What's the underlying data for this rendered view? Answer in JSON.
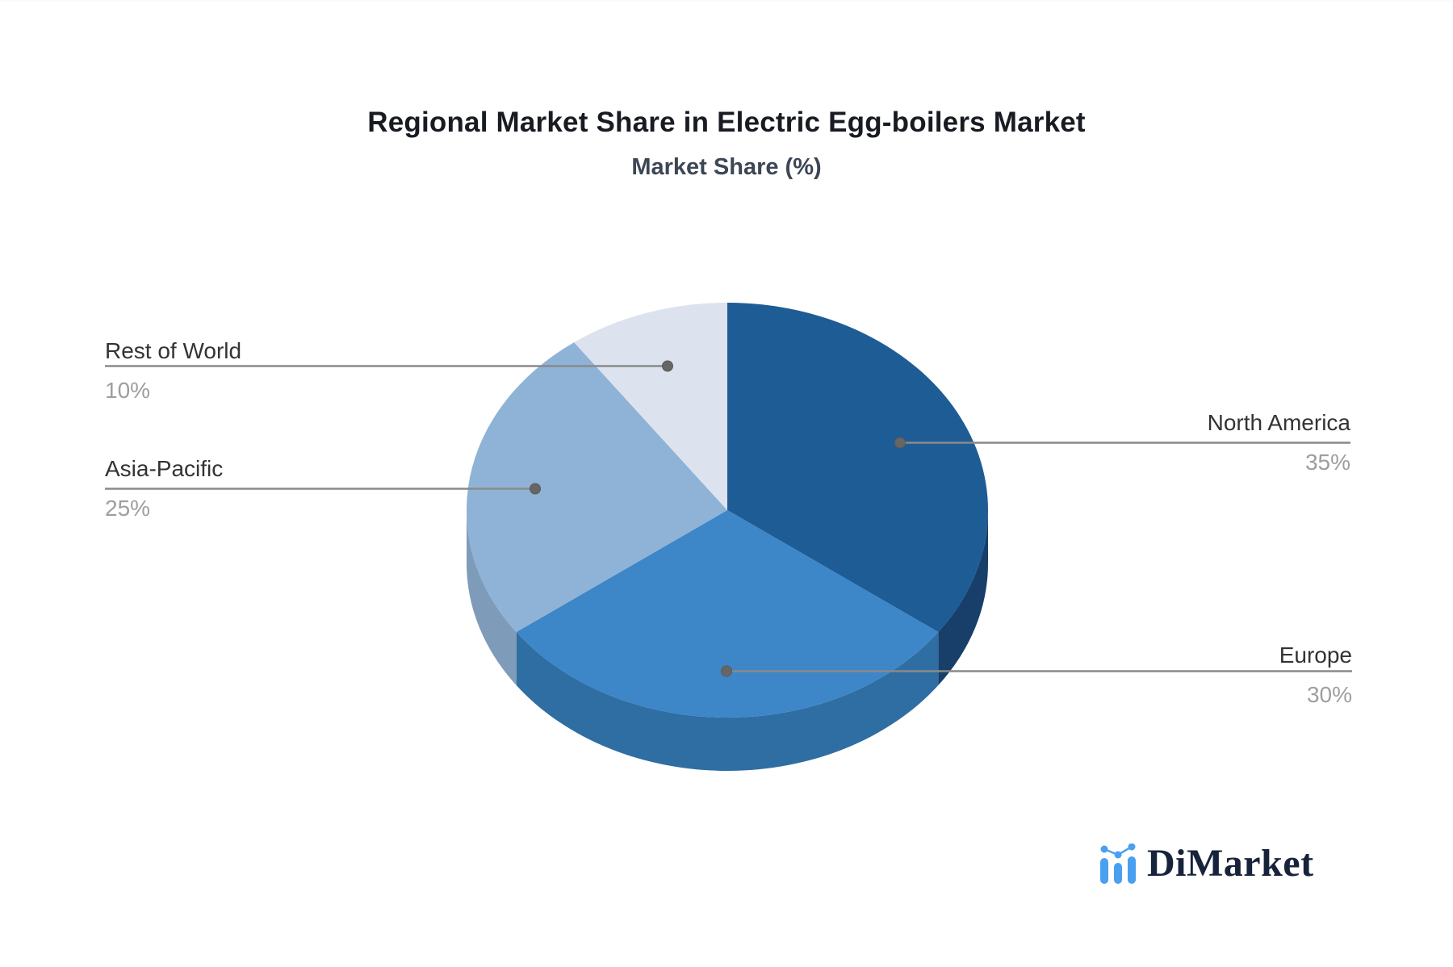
{
  "header": {
    "title": "Regional Market Share in Electric Egg-boilers Market",
    "subtitle": "Market Share (%)"
  },
  "chart_data": {
    "type": "pie",
    "style": "3d",
    "title": "Regional Market Share in Electric Egg-boilers Market",
    "subtitle": "Market Share (%)",
    "unit": "%",
    "direction": "clockwise",
    "start_angle_deg": 0,
    "legend_position": "none",
    "labels": [
      "North America",
      "Europe",
      "Asia-Pacific",
      "Rest of World"
    ],
    "values": [
      35,
      30,
      25,
      10
    ],
    "display_values": [
      "35%",
      "30%",
      "25%",
      "10%"
    ],
    "colors": [
      "#1E5C96",
      "#3D86C8",
      "#8FB3D6",
      "#DDE3EE"
    ],
    "side_colors": [
      "#173F6A",
      "#2F6EA2",
      "#7E9CBA",
      "#C9D2E0"
    ],
    "callout_text_color": "#333333",
    "callout_value_color": "#9E9E9E",
    "connector_color": "#8A8A8A"
  },
  "logo": {
    "text": "DiMarket",
    "icon": "bar-line-chart-icon",
    "icon_color": "#4AA0F0",
    "text_color": "#17233B"
  }
}
